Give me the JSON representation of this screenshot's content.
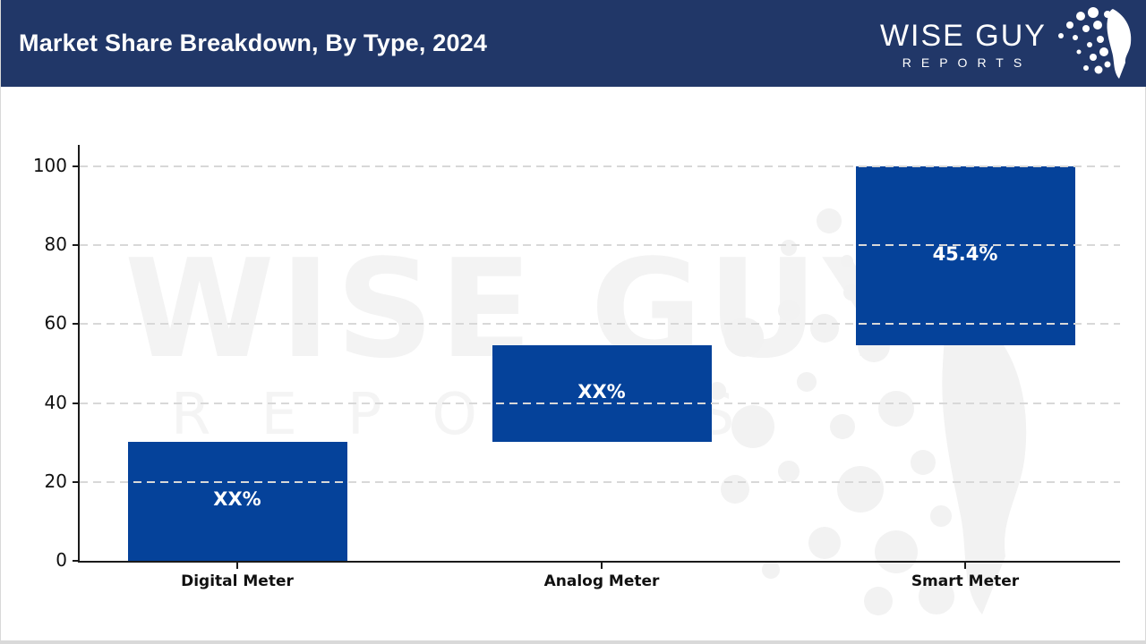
{
  "header": {
    "title": "Market Share Breakdown, By Type, 2024",
    "bg_color": "#213768",
    "logo": {
      "line1": "WISE GUY",
      "line2": "REPORTS"
    }
  },
  "watermark": {
    "line1": "WISE GUY",
    "line2": "REPORTS"
  },
  "chart_data": {
    "type": "bar",
    "subtype": "floating-waterfall-bars",
    "title": "Market Share Breakdown, By Type, 2024",
    "categories": [
      "Digital Meter",
      "Analog Meter",
      "Smart Meter"
    ],
    "segments": [
      {
        "category": "Digital Meter",
        "base": 0,
        "top": 30.2,
        "value": 30.2,
        "label": "XX%"
      },
      {
        "category": "Analog Meter",
        "base": 30.2,
        "top": 54.6,
        "value": 24.4,
        "label": "XX%"
      },
      {
        "category": "Smart Meter",
        "base": 54.6,
        "top": 100,
        "value": 45.4,
        "label": "45.4%"
      }
    ],
    "xlabel": "",
    "ylabel": "",
    "ylim": [
      0,
      100
    ],
    "yticks": [
      0,
      20,
      40,
      60,
      80,
      100
    ],
    "grid": "horizontal-dashed",
    "legend": "none",
    "bar_color": "#05429a",
    "bar_label_color": "#ffffff",
    "axis_color": "#1a1a1a",
    "grid_color": "#d8d8d8"
  }
}
